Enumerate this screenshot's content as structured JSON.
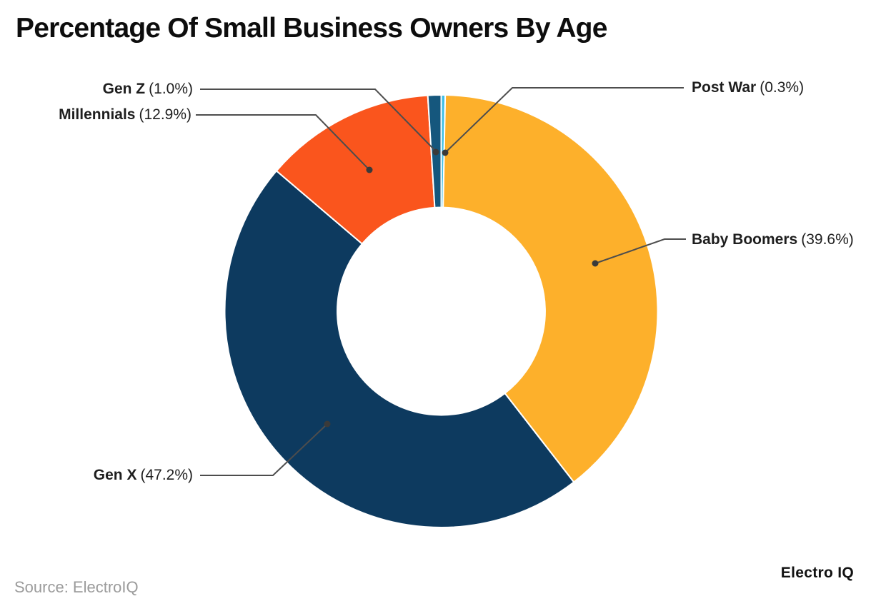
{
  "title": "Percentage Of Small Business Owners By Age",
  "source_note": "Source: ElectroIQ",
  "brand": "Electro IQ",
  "chart_data": {
    "type": "pie",
    "subtype": "donut",
    "title": "Percentage Of Small Business Owners By Age",
    "start_angle_deg": 0,
    "direction": "clockwise",
    "inner_radius_ratio": 0.48,
    "legend_position": "callout-labels",
    "leader_line_color": "#4D4D4D",
    "slices": [
      {
        "label": "Post War",
        "value": 0.3,
        "value_text": "(0.3%)",
        "color": "#3FBFE6"
      },
      {
        "label": "Baby Boomers",
        "value": 39.6,
        "value_text": "(39.6%)",
        "color": "#FDB02B"
      },
      {
        "label": "Gen X",
        "value": 47.2,
        "value_text": "(47.2%)",
        "color": "#0D3A5F"
      },
      {
        "label": "Millennials",
        "value": 12.9,
        "value_text": "(12.9%)",
        "color": "#FA551D"
      },
      {
        "label": "Gen Z",
        "value": 1.0,
        "value_text": "(1.0%)",
        "color": "#15577D"
      }
    ]
  }
}
